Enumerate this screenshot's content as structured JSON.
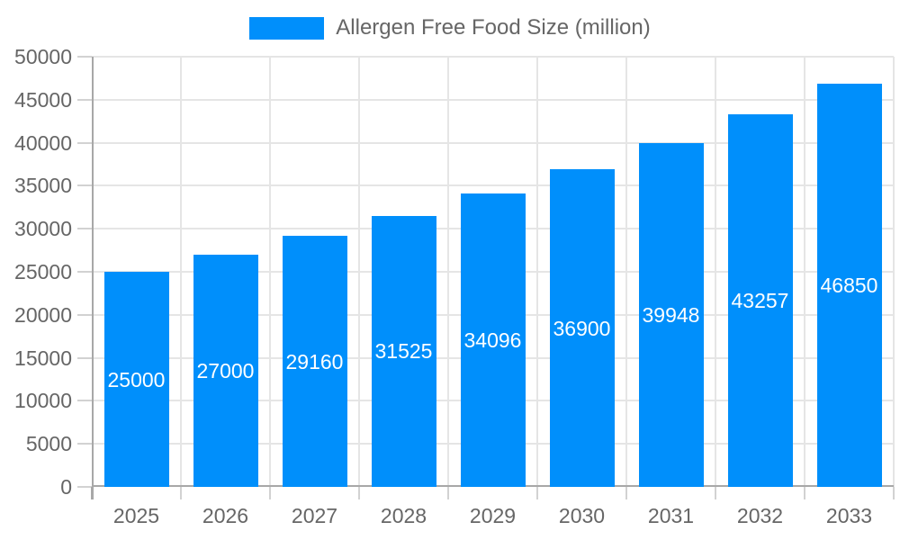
{
  "legend": {
    "label": "Allergen Free Food Size (million)"
  },
  "chart_data": {
    "type": "bar",
    "title": "Allergen Free Food Size (million)",
    "categories": [
      "2025",
      "2026",
      "2027",
      "2028",
      "2029",
      "2030",
      "2031",
      "2032",
      "2033"
    ],
    "series": [
      {
        "name": "Allergen Free Food Size (million)",
        "values": [
          25000,
          27000,
          29160,
          31525,
          34096,
          36900,
          39948,
          43257,
          46850
        ]
      }
    ],
    "bar_labels": [
      "25000",
      "27000",
      "29160",
      "31525",
      "34096",
      "36900",
      "39948",
      "43257",
      "46850"
    ],
    "ylabel": "",
    "xlabel": "",
    "ylim": [
      0,
      50000
    ],
    "ytick_step": 5000,
    "ytick_labels": [
      "0",
      "5000",
      "10000",
      "15000",
      "20000",
      "25000",
      "30000",
      "35000",
      "40000",
      "45000",
      "50000"
    ],
    "grid": true,
    "legend_position": "top",
    "colors": {
      "bar": "#008FFB",
      "bar_label_text": "#FFFFFF",
      "axis_text": "#666666",
      "grid_line": "#E5E5E5",
      "tick_line": "#D2D2D2",
      "axis_line": "#A8A8A8",
      "background": "#FFFFFF"
    }
  }
}
